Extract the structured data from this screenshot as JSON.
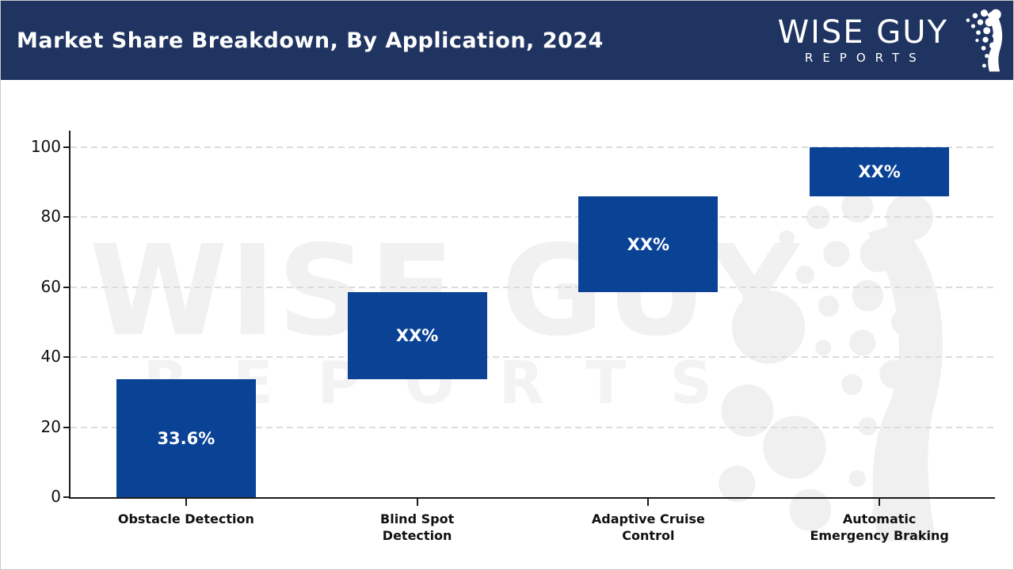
{
  "header": {
    "title": "Market Share Breakdown, By Application, 2024",
    "logo": {
      "line1": "WISE GUY",
      "line2": "REPORTS"
    }
  },
  "watermark": {
    "line1": "WISE GUY",
    "line2": "REPORTS"
  },
  "chart_data": {
    "type": "bar",
    "subtype": "waterfall",
    "title": "Market Share Breakdown, By Application, 2024",
    "categories": [
      "Obstacle Detection",
      "Blind Spot\nDetection",
      "Adaptive Cruise\nControl",
      "Automatic\nEmergency Braking"
    ],
    "segments": [
      {
        "label": "33.6%",
        "from": 0,
        "to": 33.6
      },
      {
        "label": "XX%",
        "from": 33.6,
        "to": 58.5
      },
      {
        "label": "XX%",
        "from": 58.5,
        "to": 86.0
      },
      {
        "label": "XX%",
        "from": 86.0,
        "to": 100.0
      }
    ],
    "y_ticks": [
      0,
      20,
      40,
      60,
      80,
      100
    ],
    "ylim": [
      0,
      105
    ],
    "grid": "dashed-horizontal",
    "legend": "none",
    "xlabel": "",
    "ylabel": "",
    "bar_color": "#0a4296",
    "bar_label_color": "#ffffff",
    "axis_color": "#1c1c1c",
    "grid_color": "#dcdcdc",
    "header_color": "#1f3460"
  }
}
